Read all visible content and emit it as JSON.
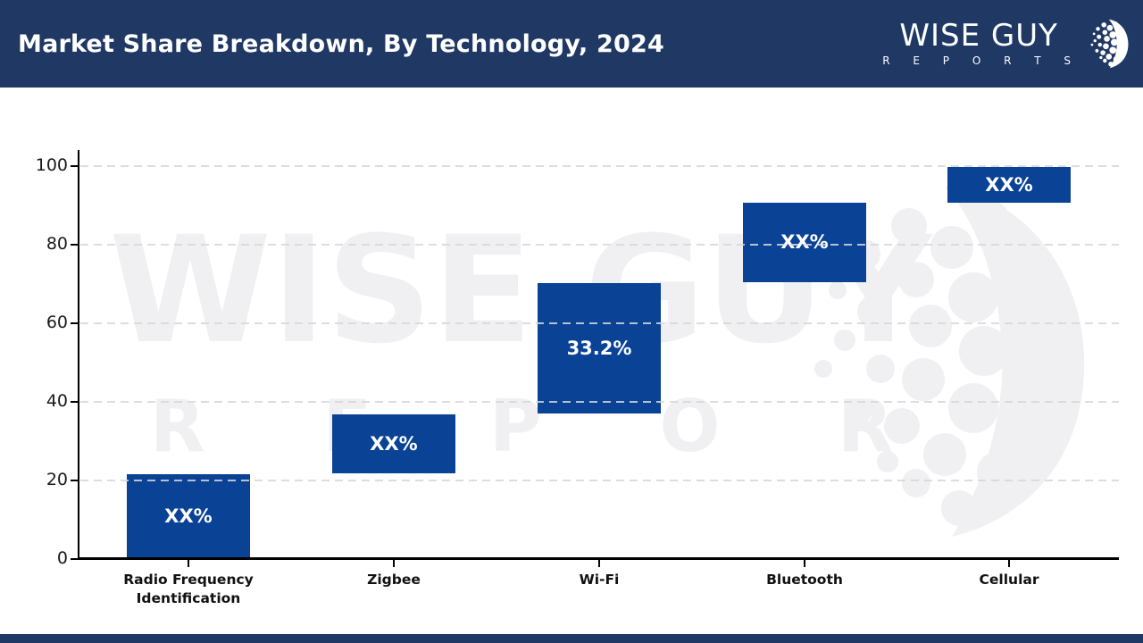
{
  "header": {
    "title": "Market Share Breakdown, By Technology, 2024",
    "logo": {
      "name": "WISE GUY",
      "subname": "R E P O R T S"
    }
  },
  "watermark": {
    "name": "WISE GUY",
    "subname": "R E P O R T S"
  },
  "colors": {
    "header_bg": "#1f3864",
    "footer_bg": "#1f3864",
    "bar": "#0a4296",
    "bar_label_text": "#ffffff",
    "grid_line": "#d7d7da",
    "axis_line": "#000000",
    "tick_text": "#1a1a1a",
    "title_text": "#ffffff",
    "watermark_gray": "#f0f0f2"
  },
  "chart_data": {
    "type": "bar",
    "variant": "floating-segment (waterfall-style stacked market share)",
    "title": "Market Share Breakdown, By Technology, 2024",
    "categories": [
      "Radio Frequency\nIdentification",
      "Zigbee",
      "Wi-Fi",
      "Bluetooth",
      "Cellular"
    ],
    "segments": [
      {
        "category": "Radio Frequency Identification",
        "start": 0,
        "end": 21.6,
        "label": "XX%"
      },
      {
        "category": "Zigbee",
        "start": 21.8,
        "end": 36.8,
        "label": "XX%"
      },
      {
        "category": "Wi-Fi",
        "start": 37.0,
        "end": 70.2,
        "label": "33.2%"
      },
      {
        "category": "Bluetooth",
        "start": 70.5,
        "end": 90.7,
        "label": "XX%"
      },
      {
        "category": "Cellular",
        "start": 90.7,
        "end": 99.8,
        "label": "XX%"
      }
    ],
    "yticks": [
      0,
      20,
      40,
      60,
      80,
      100
    ],
    "ylim": [
      0,
      105
    ],
    "xlabel": "",
    "ylabel": "",
    "grid": "horizontal dashed, drawn over bars",
    "legend": "none",
    "bar_color": "#0a4296",
    "value_label_color": "#ffffff"
  }
}
